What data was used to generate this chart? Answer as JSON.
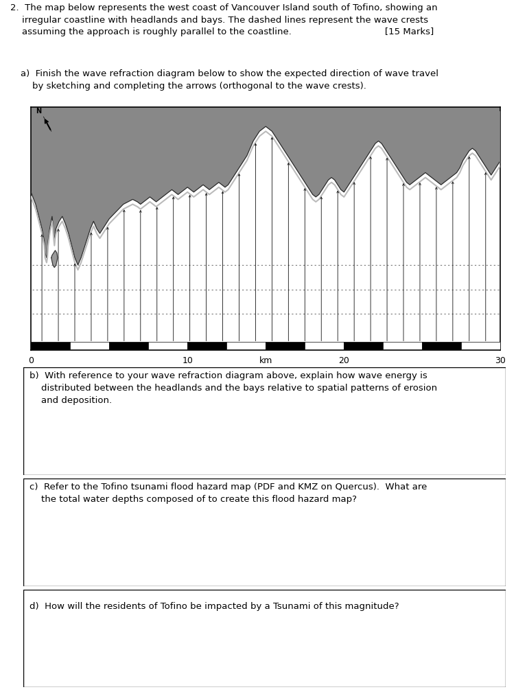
{
  "title_line1": "2.  The map below represents the west coast of Vancouver Island south of Tofino, showing an",
  "title_line2": "    irregular coastline with headlands and bays. The dashed lines represent the wave crests",
  "title_line3": "    assuming the approach is roughly parallel to the coastline.                                [15 Marks]",
  "part_a_line1": "a)  Finish the wave refraction diagram below to show the expected direction of wave travel",
  "part_a_line2": "    by sketching and completing the arrows (orthogonal to the wave crests).",
  "part_b_text": "b)  With reference to your wave refraction diagram above, explain how wave energy is\n    distributed between the headlands and the bays relative to spatial patterns of erosion\n    and deposition.",
  "part_c_text": "c)  Refer to the Tofino tsunami flood hazard map (PDF and KMZ on Quercus).  What are\n    the total water depths composed of to create this flood hazard map?",
  "part_d_text": "d)  How will the residents of Tofino be impacted by a Tsunami of this magnitude?",
  "ocean_color": "#ffffff",
  "land_color": "#888888",
  "land_fill_light": "#c8c8c8",
  "land_outline_color": "#2a2a2a",
  "arrow_color": "#111111",
  "dot_color": "#777777",
  "map_border_color": "#000000",
  "scale_black": "#000000",
  "scale_white": "#ffffff"
}
